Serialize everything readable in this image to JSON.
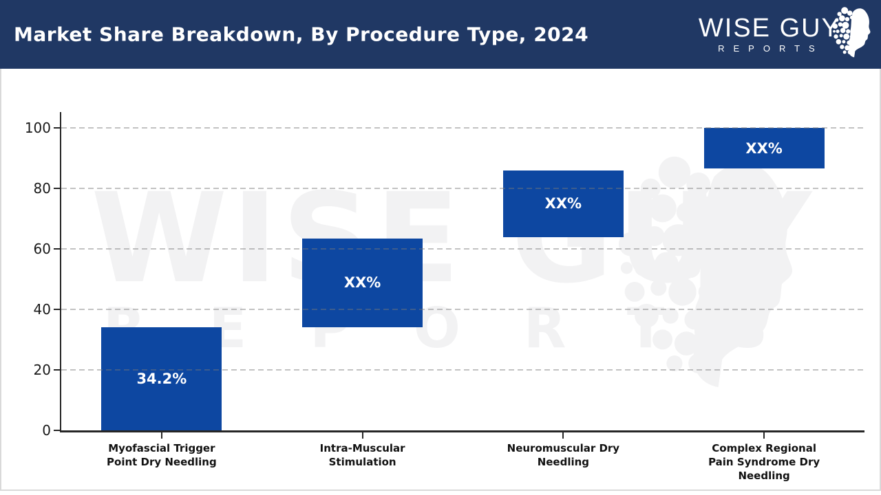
{
  "header": {
    "title": "Market Share Breakdown, By Procedure Type, 2024",
    "background_color": "#203864",
    "logo": {
      "wordmark": "WISE GUY",
      "subtext": "REPORTS"
    }
  },
  "watermark": {
    "line1": "WISE GUY",
    "line2": "REPORTS"
  },
  "chart_data": {
    "type": "bar",
    "subtype": "waterfall-stacked-segments",
    "title": "Market Share Breakdown, By Procedure Type, 2024",
    "xlabel": "",
    "ylabel": "",
    "ylim": [
      0,
      105
    ],
    "y_ticks": [
      0,
      20,
      40,
      60,
      80,
      100
    ],
    "grid": "horizontal-dashed",
    "bar_color": "#0d47a1",
    "categories": [
      "Myofascial Trigger Point Dry Needling",
      "Intra-Muscular Stimulation",
      "Neuromuscular Dry Needling",
      "Complex Regional Pain Syndrome Dry Needling"
    ],
    "categories_lines": [
      [
        "Myofascial Trigger",
        "Point Dry Needling"
      ],
      [
        "Intra-Muscular",
        "Stimulation"
      ],
      [
        "Neuromuscular Dry",
        "Needling"
      ],
      [
        "Complex Regional",
        "Pain Syndrome Dry",
        "Needling"
      ]
    ],
    "segments": [
      {
        "category": "Myofascial Trigger Point Dry Needling",
        "start": 0,
        "end": 34.2,
        "value_label": "34.2%"
      },
      {
        "category": "Intra-Muscular Stimulation",
        "start": 34.2,
        "end": 63.5,
        "value_label": "XX%"
      },
      {
        "category": "Neuromuscular Dry Needling",
        "start": 64,
        "end": 86,
        "value_label": "XX%"
      },
      {
        "category": "Complex Regional Pain Syndrome Dry Needling",
        "start": 86.5,
        "end": 100,
        "value_label": "XX%"
      }
    ]
  }
}
